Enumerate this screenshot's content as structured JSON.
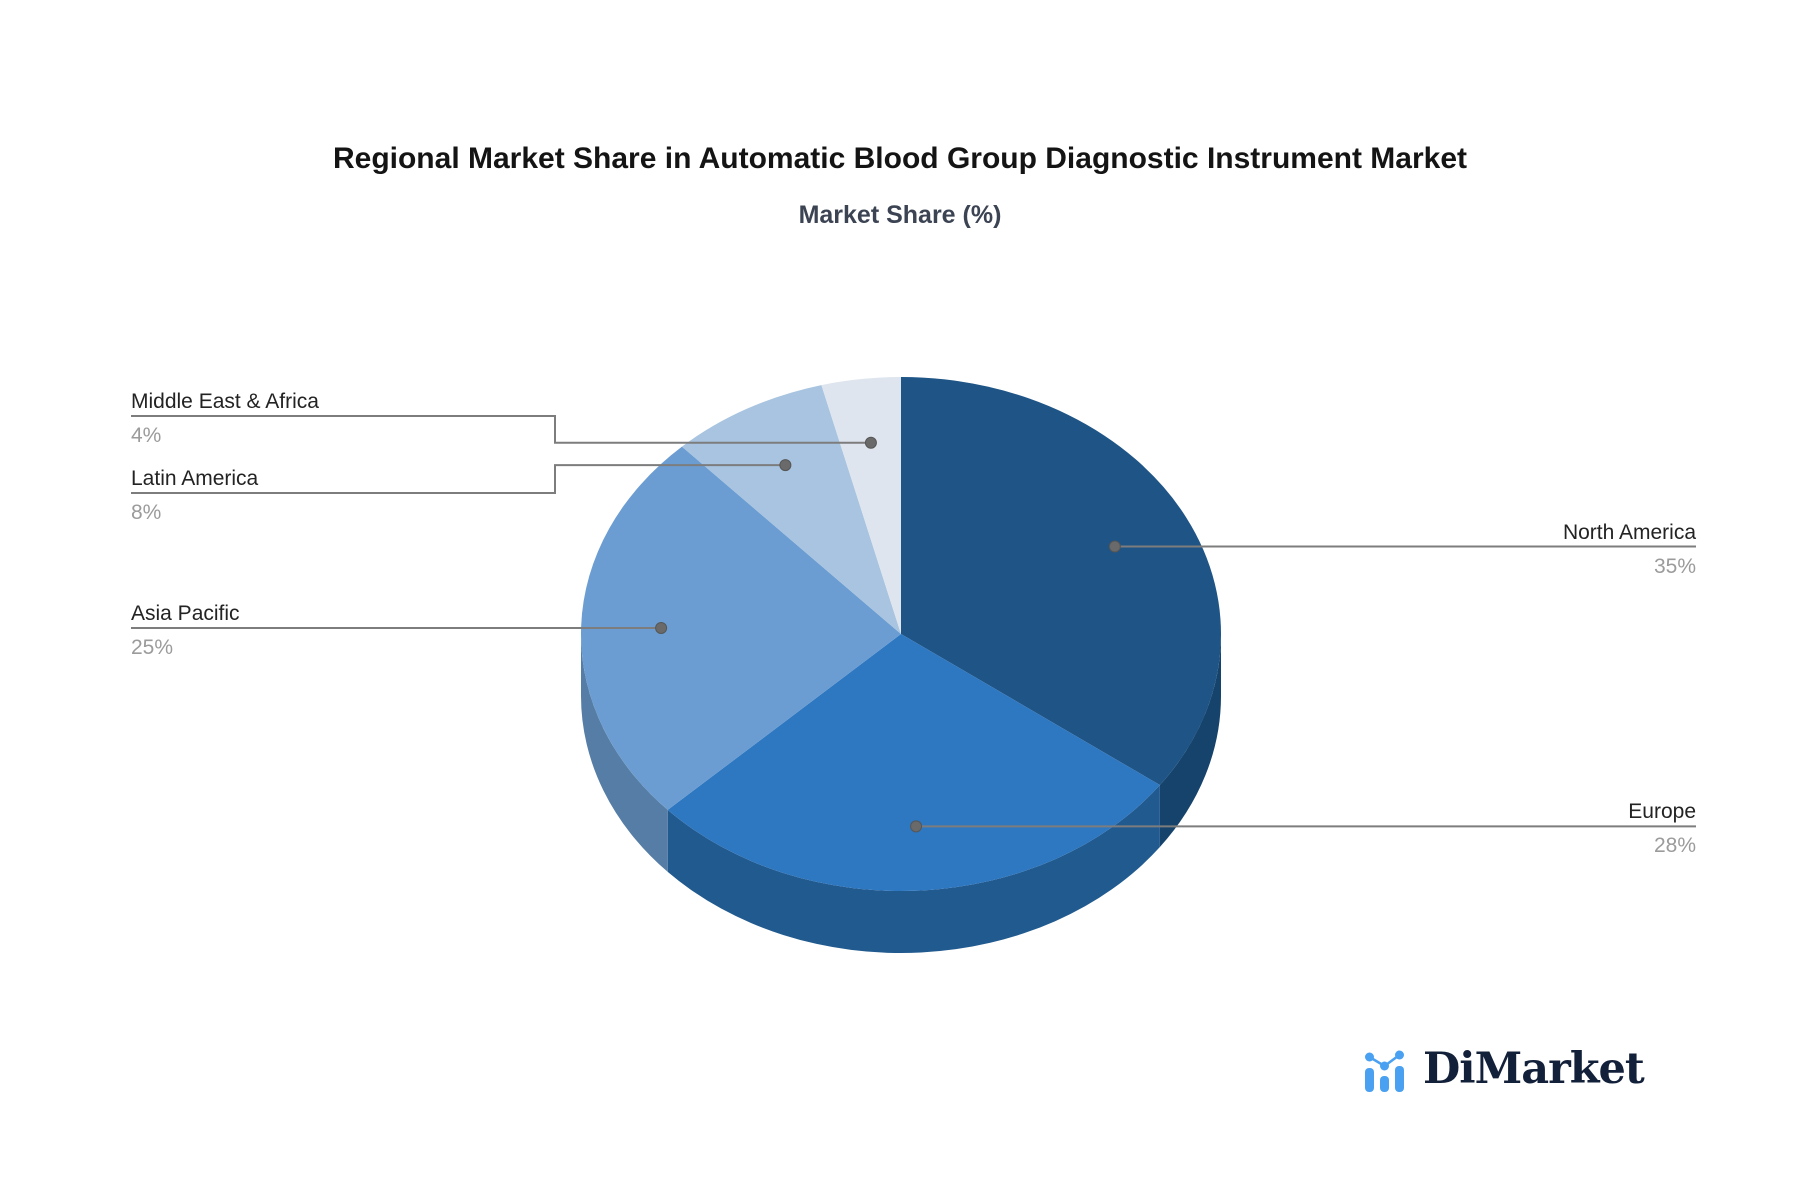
{
  "title": "Regional Market Share in Automatic Blood Group Diagnostic Instrument Market",
  "subtitle": "Market Share (%)",
  "brand": {
    "name": "DiMarket",
    "icon": "bar-line-chart-icon"
  },
  "chart_data": {
    "type": "pie",
    "title": "Regional Market Share in Automatic Blood Group Diagnostic Instrument Market",
    "subtitle": "Market Share (%)",
    "unit": "%",
    "start_angle_deg": -90,
    "direction": "clockwise",
    "effect_3d": true,
    "legend_position": "connector-labels",
    "categories": [
      "North America",
      "Europe",
      "Asia Pacific",
      "Latin America",
      "Middle East & Africa"
    ],
    "values": [
      35,
      28,
      25,
      8,
      4
    ],
    "slices": [
      {
        "label": "North America",
        "value": 35,
        "pct_label": "35%",
        "color": "#1e5486",
        "side_color": "#16436b"
      },
      {
        "label": "Europe",
        "value": 28,
        "pct_label": "28%",
        "color": "#2e77c1",
        "side_color": "#215a8f"
      },
      {
        "label": "Asia Pacific",
        "value": 25,
        "pct_label": "25%",
        "color": "#6b9dd2",
        "side_color": "#567da5"
      },
      {
        "label": "Latin America",
        "value": 8,
        "pct_label": "8%",
        "color": "#a8c4e0"
      },
      {
        "label": "Middle East & Africa",
        "value": 4,
        "pct_label": "4%",
        "color": "#dee5ee"
      }
    ],
    "connector_color": "#7d7d7d",
    "label_name_color": "#232323",
    "label_pct_color": "#9b9b9b"
  }
}
